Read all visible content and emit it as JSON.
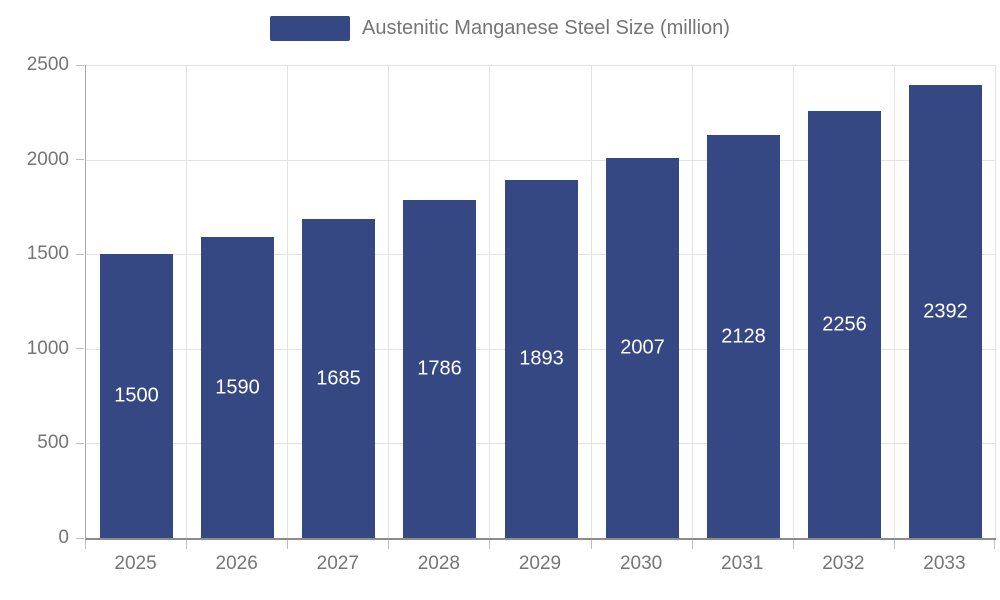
{
  "legend": {
    "label": "Austenitic Manganese Steel Size (million)"
  },
  "colors": {
    "bar": "#354883",
    "axis": "#8c8c8c",
    "axis_soft": "#aaaaaa",
    "grid": "#e3e3e3",
    "tick": "#bdbdbd",
    "label_text": "#757575",
    "value_text": "#ffffff"
  },
  "chart_data": {
    "type": "bar",
    "title": "Austenitic Manganese Steel Size (million)",
    "categories": [
      "2025",
      "2026",
      "2027",
      "2028",
      "2029",
      "2030",
      "2031",
      "2032",
      "2033"
    ],
    "values": [
      1500,
      1590,
      1685,
      1786,
      1893,
      2007,
      2128,
      2256,
      2392
    ],
    "yticks": [
      0,
      500,
      1000,
      1500,
      2000,
      2500
    ],
    "ylim": [
      0,
      2500
    ],
    "xlabel": "",
    "ylabel": "",
    "grid": true,
    "legend_position": "top",
    "value_labels": "inside-center"
  }
}
